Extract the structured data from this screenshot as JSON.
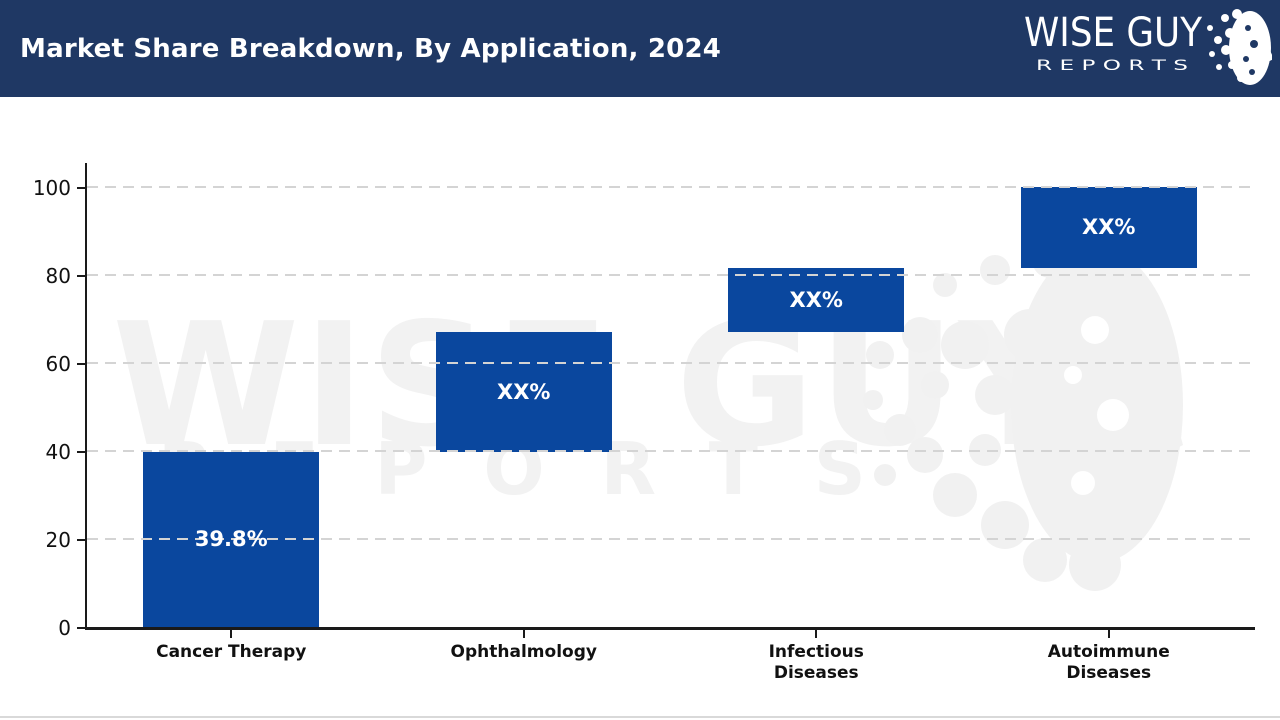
{
  "header": {
    "title": "Market Share Breakdown, By Application, 2024",
    "logo": {
      "line1": "WISE GUY",
      "line2": "R E P O R T S"
    }
  },
  "watermark": {
    "line1": "WISE GUY",
    "line2": "REPORTS"
  },
  "chart_data": {
    "type": "bar",
    "subtype": "waterfall",
    "title": "Market Share Breakdown, By Application, 2024",
    "categories": [
      "Cancer Therapy",
      "Ophthalmology",
      "Infectious\nDiseases",
      "Autoimmune\nDiseases"
    ],
    "segments": [
      {
        "category": "Cancer Therapy",
        "start": 0,
        "end": 39.8,
        "label": "39.8%"
      },
      {
        "category": "Ophthalmology",
        "start": 39.8,
        "end": 67,
        "label": "XX%"
      },
      {
        "category": "Infectious Diseases",
        "start": 67,
        "end": 81.5,
        "label": "XX%"
      },
      {
        "category": "Autoimmune Diseases",
        "start": 81.5,
        "end": 100,
        "label": "XX%"
      }
    ],
    "xlabel": "",
    "ylabel": "",
    "yticks": [
      0,
      20,
      40,
      60,
      80,
      100
    ],
    "ylim": [
      0,
      105
    ],
    "grid": {
      "axis": "y",
      "style": "dashed",
      "color": "#d4d4d4",
      "on_top_of_bars": true
    },
    "legend": "none",
    "bar_color": "#0a479e",
    "bar_label_color": "#ffffff",
    "axis_color": "#1a1a1a",
    "header_color": "#1f3864",
    "watermark_color": "#f2f2f2"
  }
}
